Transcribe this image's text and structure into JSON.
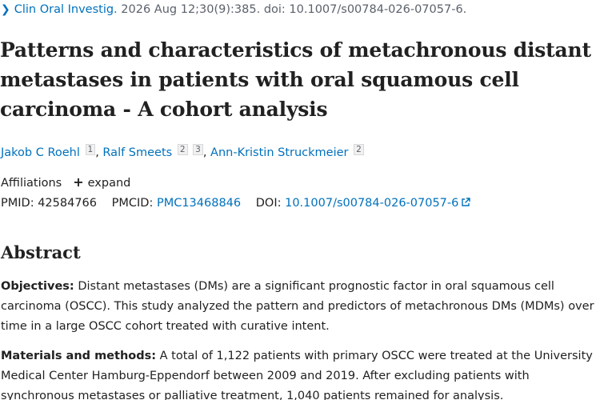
{
  "citation": {
    "journal": "Clin Oral Investig.",
    "details": " 2026 Aug 12;30(9):385. doi: 10.1007/s00784-026-07057-6."
  },
  "title": "Patterns and characteristics of metachronous distant metastases in patients with oral squamous cell carcinoma - A cohort analysis",
  "authors": [
    {
      "name": "Jakob C Roehl",
      "affils": [
        "1"
      ]
    },
    {
      "name": "Ralf Smeets",
      "affils": [
        "2",
        "3"
      ]
    },
    {
      "name": "Ann-Kristin Struckmeier",
      "affils": [
        "2"
      ]
    }
  ],
  "affiliations": {
    "label": "Affiliations",
    "expand_label": "expand",
    "expand_icon": "plus-icon"
  },
  "identifiers": {
    "pmid_label": "PMID:",
    "pmid": "42584766",
    "pmcid_label": "PMCID:",
    "pmcid": "PMC13468846",
    "doi_label": "DOI:",
    "doi": "10.1007/s00784-026-07057-6",
    "doi_icon": "external-link-icon"
  },
  "abstract": {
    "heading": "Abstract",
    "sections": [
      {
        "label": "Objectives:",
        "text": " Distant metastases (DMs) are a significant prognostic factor in oral squamous cell carcinoma (OSCC). This study analyzed the pattern and predictors of metachronous DMs (MDMs) over time in a large OSCC cohort treated with curative intent."
      },
      {
        "label": "Materials and methods:",
        "text": " A total of 1,122 patients with primary OSCC were treated at the University Medical Center Hamburg-Eppendorf between 2009 and 2019. After excluding patients with synchronous metastases or palliative treatment, 1,040 patients remained for analysis."
      }
    ]
  },
  "colors": {
    "link": "#0071bc",
    "text": "#212121",
    "muted": "#5b616b"
  }
}
